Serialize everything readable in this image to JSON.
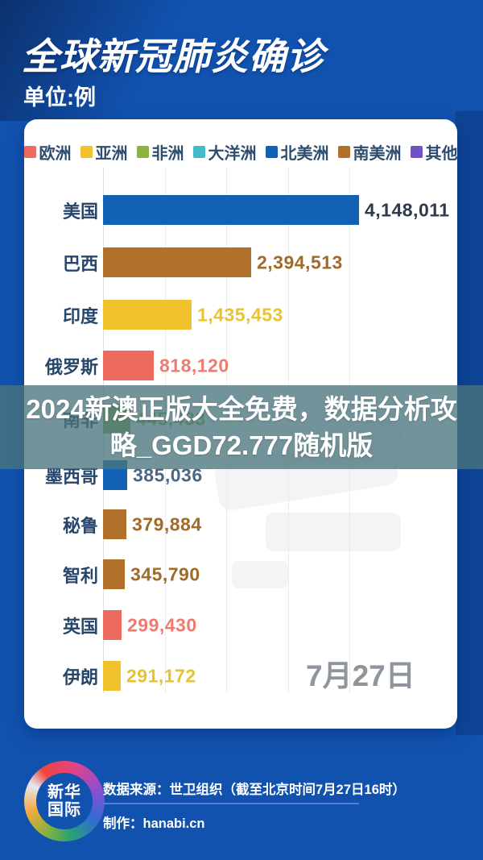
{
  "page": {
    "bg_color": "#1152af",
    "card_color": "#ffffff"
  },
  "header": {
    "title": "全球新冠肺炎确诊",
    "subtitle": "单位:例"
  },
  "legend": [
    {
      "label": "欧洲",
      "color": "#ed6a5e"
    },
    {
      "label": "亚洲",
      "color": "#f2c22e"
    },
    {
      "label": "非洲",
      "color": "#8ab340"
    },
    {
      "label": "大洋洲",
      "color": "#43bcc9"
    },
    {
      "label": "北美洲",
      "color": "#1162b5"
    },
    {
      "label": "南美洲",
      "color": "#b0722a"
    },
    {
      "label": "其他",
      "color": "#7052c6"
    }
  ],
  "chart_data": {
    "type": "bar",
    "orientation": "horizontal",
    "title": "全球新冠肺炎确诊",
    "unit_label": "单位:例",
    "date_label": "7月27日",
    "axis": {
      "min": 0,
      "max": 4300000,
      "gridline_interval": 1000000,
      "grid": true
    },
    "legend_position": "top",
    "rows": [
      {
        "label": "美国",
        "value": 4148011,
        "display": "4,148,011",
        "continent": "北美洲",
        "bar_color": "#1162b5",
        "value_color": "#2e3b4e",
        "obscured": false
      },
      {
        "label": "巴西",
        "value": 2394513,
        "display": "2,394,513",
        "continent": "南美洲",
        "bar_color": "#b0722a",
        "value_color": "#a06b28",
        "obscured": false
      },
      {
        "label": "印度",
        "value": 1435453,
        "display": "1,435,453",
        "continent": "亚洲",
        "bar_color": "#f2c22e",
        "value_color": "#eac32f",
        "obscured": false
      },
      {
        "label": "俄罗斯",
        "value": 818120,
        "display": "818,120",
        "continent": "欧洲",
        "bar_color": "#ed6a5e",
        "value_color": "#ee7b70",
        "obscured": false
      },
      {
        "label": "南非",
        "value": 445433,
        "display": "445,433",
        "continent": "非洲",
        "bar_color": "#8ab340",
        "value_color": "#8ab340",
        "obscured": true
      },
      {
        "label": "墨西哥",
        "value": 385036,
        "display": "385,036",
        "continent": "北美洲",
        "bar_color": "#1162b5",
        "value_color": "#4a6785",
        "obscured": false
      },
      {
        "label": "秘鲁",
        "value": 379884,
        "display": "379,884",
        "continent": "南美洲",
        "bar_color": "#b0722a",
        "value_color": "#a06b28",
        "obscured": false
      },
      {
        "label": "智利",
        "value": 345790,
        "display": "345,790",
        "continent": "南美洲",
        "bar_color": "#b0722a",
        "value_color": "#a06b28",
        "obscured": false
      },
      {
        "label": "英国",
        "value": 299430,
        "display": "299,430",
        "continent": "欧洲",
        "bar_color": "#ed6a5e",
        "value_color": "#ee7b70",
        "obscured": false
      },
      {
        "label": "伊朗",
        "value": 291172,
        "display": "291,172",
        "continent": "亚洲",
        "bar_color": "#f2c22e",
        "value_color": "#e3c437",
        "obscured": false
      }
    ]
  },
  "watermark": {
    "full_text": "2024新澳正版大全免费，数据分析攻略_GGD72.777随机版",
    "line1": "2024新澳正版大全免费，数据分析攻",
    "line2": "略_GGD72.777随机版",
    "band_color": "rgba(74,116,124,0.78)"
  },
  "footer": {
    "logo_line1": "新华",
    "logo_line2": "国际",
    "source": "数据来源：世卫组织（截至北京时间7月27日16时）",
    "credit": "制作：hanabi.cn"
  }
}
